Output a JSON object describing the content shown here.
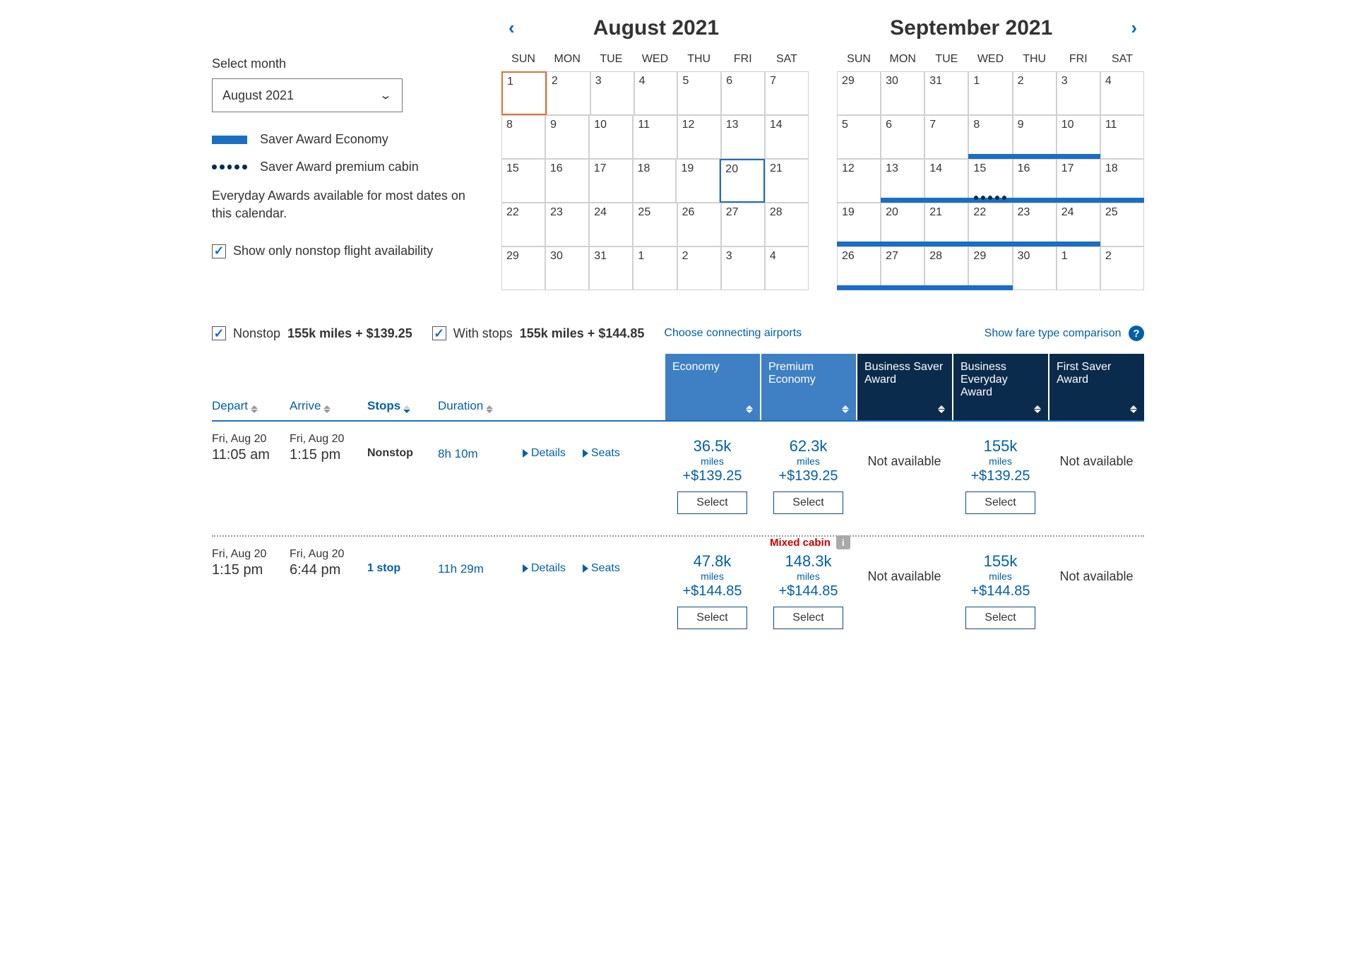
{
  "leftPanel": {
    "selectMonthLabel": "Select month",
    "selectedMonth": "August 2021",
    "legendSolid": "Saver Award Economy",
    "legendDots": "Saver Award premium cabin",
    "note": "Everyday Awards available for most dates on this calendar.",
    "nonstopCheckbox": "Show only nonstop flight availability"
  },
  "calendars": {
    "prev": "‹",
    "next": "›",
    "dow": [
      "SUN",
      "MON",
      "TUE",
      "WED",
      "THU",
      "FRI",
      "SAT"
    ],
    "months": [
      {
        "title": "August 2021",
        "weeks": [
          [
            {
              "n": "1",
              "today": true
            },
            {
              "n": "2"
            },
            {
              "n": "3"
            },
            {
              "n": "4"
            },
            {
              "n": "5"
            },
            {
              "n": "6"
            },
            {
              "n": "7"
            }
          ],
          [
            {
              "n": "8"
            },
            {
              "n": "9"
            },
            {
              "n": "10"
            },
            {
              "n": "11"
            },
            {
              "n": "12"
            },
            {
              "n": "13"
            },
            {
              "n": "14"
            }
          ],
          [
            {
              "n": "15"
            },
            {
              "n": "16"
            },
            {
              "n": "17"
            },
            {
              "n": "18"
            },
            {
              "n": "19"
            },
            {
              "n": "20",
              "selected": true
            },
            {
              "n": "21"
            }
          ],
          [
            {
              "n": "22"
            },
            {
              "n": "23"
            },
            {
              "n": "24"
            },
            {
              "n": "25"
            },
            {
              "n": "26"
            },
            {
              "n": "27"
            },
            {
              "n": "28"
            }
          ],
          [
            {
              "n": "29"
            },
            {
              "n": "30"
            },
            {
              "n": "31"
            },
            {
              "n": "1"
            },
            {
              "n": "2"
            },
            {
              "n": "3"
            },
            {
              "n": "4"
            }
          ]
        ]
      },
      {
        "title": "September 2021",
        "weeks": [
          [
            {
              "n": "29"
            },
            {
              "n": "30"
            },
            {
              "n": "31"
            },
            {
              "n": "1"
            },
            {
              "n": "2"
            },
            {
              "n": "3"
            },
            {
              "n": "4"
            }
          ],
          [
            {
              "n": "5"
            },
            {
              "n": "6"
            },
            {
              "n": "7"
            },
            {
              "n": "8",
              "solid": true
            },
            {
              "n": "9",
              "solid": true
            },
            {
              "n": "10",
              "solid": true
            },
            {
              "n": "11"
            }
          ],
          [
            {
              "n": "12"
            },
            {
              "n": "13",
              "solid": true
            },
            {
              "n": "14",
              "solid": true
            },
            {
              "n": "15",
              "solid": true,
              "dots": true
            },
            {
              "n": "16",
              "solid": true
            },
            {
              "n": "17",
              "solid": true
            },
            {
              "n": "18",
              "solid": true
            }
          ],
          [
            {
              "n": "19",
              "solid": true
            },
            {
              "n": "20",
              "solid": true
            },
            {
              "n": "21",
              "solid": true
            },
            {
              "n": "22",
              "solid": true
            },
            {
              "n": "23",
              "solid": true
            },
            {
              "n": "24",
              "solid": true
            },
            {
              "n": "25"
            }
          ],
          [
            {
              "n": "26",
              "solid": true
            },
            {
              "n": "27",
              "solid": true
            },
            {
              "n": "28",
              "solid": true
            },
            {
              "n": "29",
              "solid": true
            },
            {
              "n": "30"
            },
            {
              "n": "1"
            },
            {
              "n": "2"
            }
          ]
        ]
      }
    ]
  },
  "filterBar": {
    "nonstopLabel": "Nonstop",
    "nonstopPrice": "155k miles + $139.25",
    "withStopsLabel": "With stops",
    "withStopsPrice": "155k miles + $144.85",
    "connectingLink": "Choose connecting airports",
    "comparisonLink": "Show fare type comparison"
  },
  "table": {
    "headers": {
      "depart": "Depart",
      "arrive": "Arrive",
      "stops": "Stops",
      "duration": "Duration"
    },
    "fareHeaders": [
      {
        "label": "Economy",
        "cls": "blue"
      },
      {
        "label": "Premium Economy",
        "cls": "blue"
      },
      {
        "label": "Business Saver Award",
        "cls": "navy"
      },
      {
        "label": "Business Everyday Award",
        "cls": "navy"
      },
      {
        "label": "First Saver Award",
        "cls": "navy"
      }
    ],
    "detailsLabel": "Details",
    "seatsLabel": "Seats",
    "selectLabel": "Select",
    "milesLabel": "miles",
    "naLabel": "Not available",
    "mixedCabin": "Mixed cabin",
    "rows": [
      {
        "departDate": "Fri, Aug 20",
        "departTime": "11:05 am",
        "arriveDate": "Fri, Aug 20",
        "arriveTime": "1:15 pm",
        "stops": "Nonstop",
        "stopsLink": false,
        "duration": "8h 10m",
        "mixed": false,
        "fares": [
          {
            "miles": "36.5k",
            "fee": "+$139.25",
            "available": true
          },
          {
            "miles": "62.3k",
            "fee": "+$139.25",
            "available": true
          },
          {
            "available": false
          },
          {
            "miles": "155k",
            "fee": "+$139.25",
            "available": true
          },
          {
            "available": false
          }
        ]
      },
      {
        "departDate": "Fri, Aug 20",
        "departTime": "1:15 pm",
        "arriveDate": "Fri, Aug 20",
        "arriveTime": "6:44 pm",
        "stops": "1 stop",
        "stopsLink": true,
        "duration": "11h 29m",
        "mixed": true,
        "fares": [
          {
            "miles": "47.8k",
            "fee": "+$144.85",
            "available": true
          },
          {
            "miles": "148.3k",
            "fee": "+$144.85",
            "available": true
          },
          {
            "available": false
          },
          {
            "miles": "155k",
            "fee": "+$144.85",
            "available": true
          },
          {
            "available": false
          }
        ]
      }
    ]
  },
  "colors": {
    "accentBlue": "#1b6ec2",
    "navy": "#0b2b4d",
    "linkBlue": "#0060a9",
    "todayOrange": "#e07038"
  }
}
